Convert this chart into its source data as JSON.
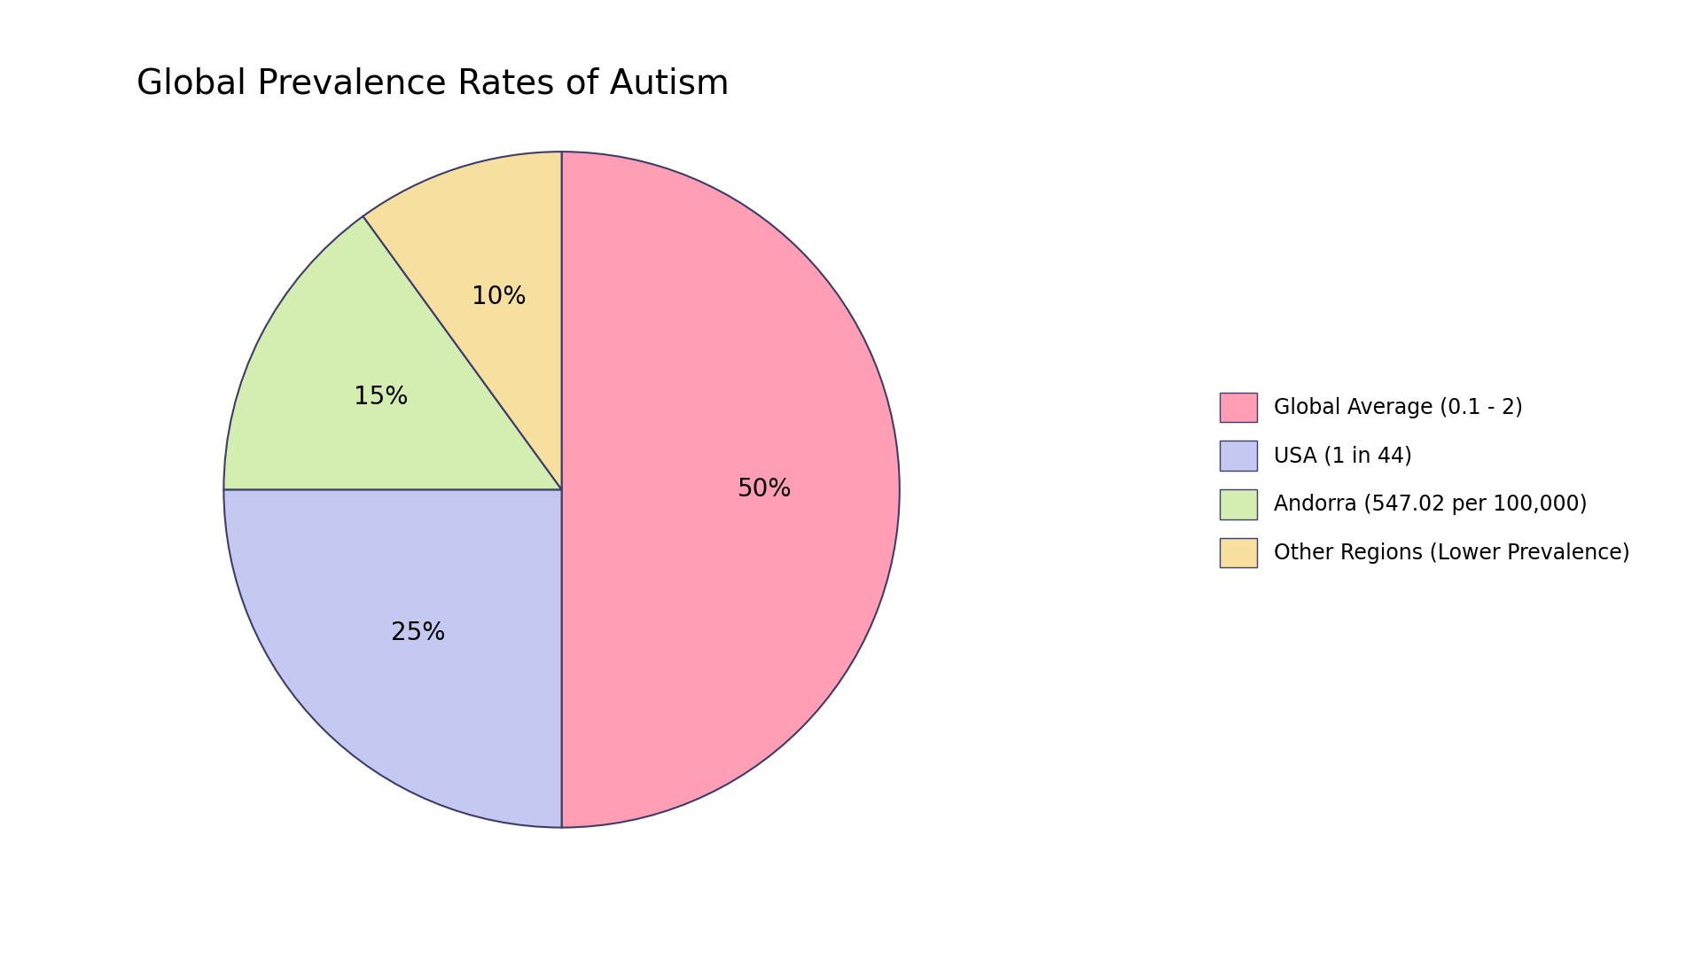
{
  "title": "Global Prevalence Rates of Autism",
  "title_fontsize": 28,
  "title_fontfamily": "sans-serif",
  "slices": [
    50,
    25,
    15,
    10
  ],
  "labels": [
    "Global Average (0.1 - 2)",
    "USA (1 in 44)",
    "Andorra (547.02 per 100,000)",
    "Other Regions (Lower Prevalence)"
  ],
  "colors": [
    "#FF9EB5",
    "#C5C8F0",
    "#D4EDB0",
    "#F7DFA0"
  ],
  "edge_color": "#3D3D6B",
  "edge_linewidth": 1.5,
  "autopct_labels": [
    "50%",
    "25%",
    "15%",
    "10%"
  ],
  "startangle": 90,
  "background_color": "#FFFFFF",
  "legend_fontsize": 17,
  "autopct_fontsize": 20,
  "pctdistance": 0.6
}
